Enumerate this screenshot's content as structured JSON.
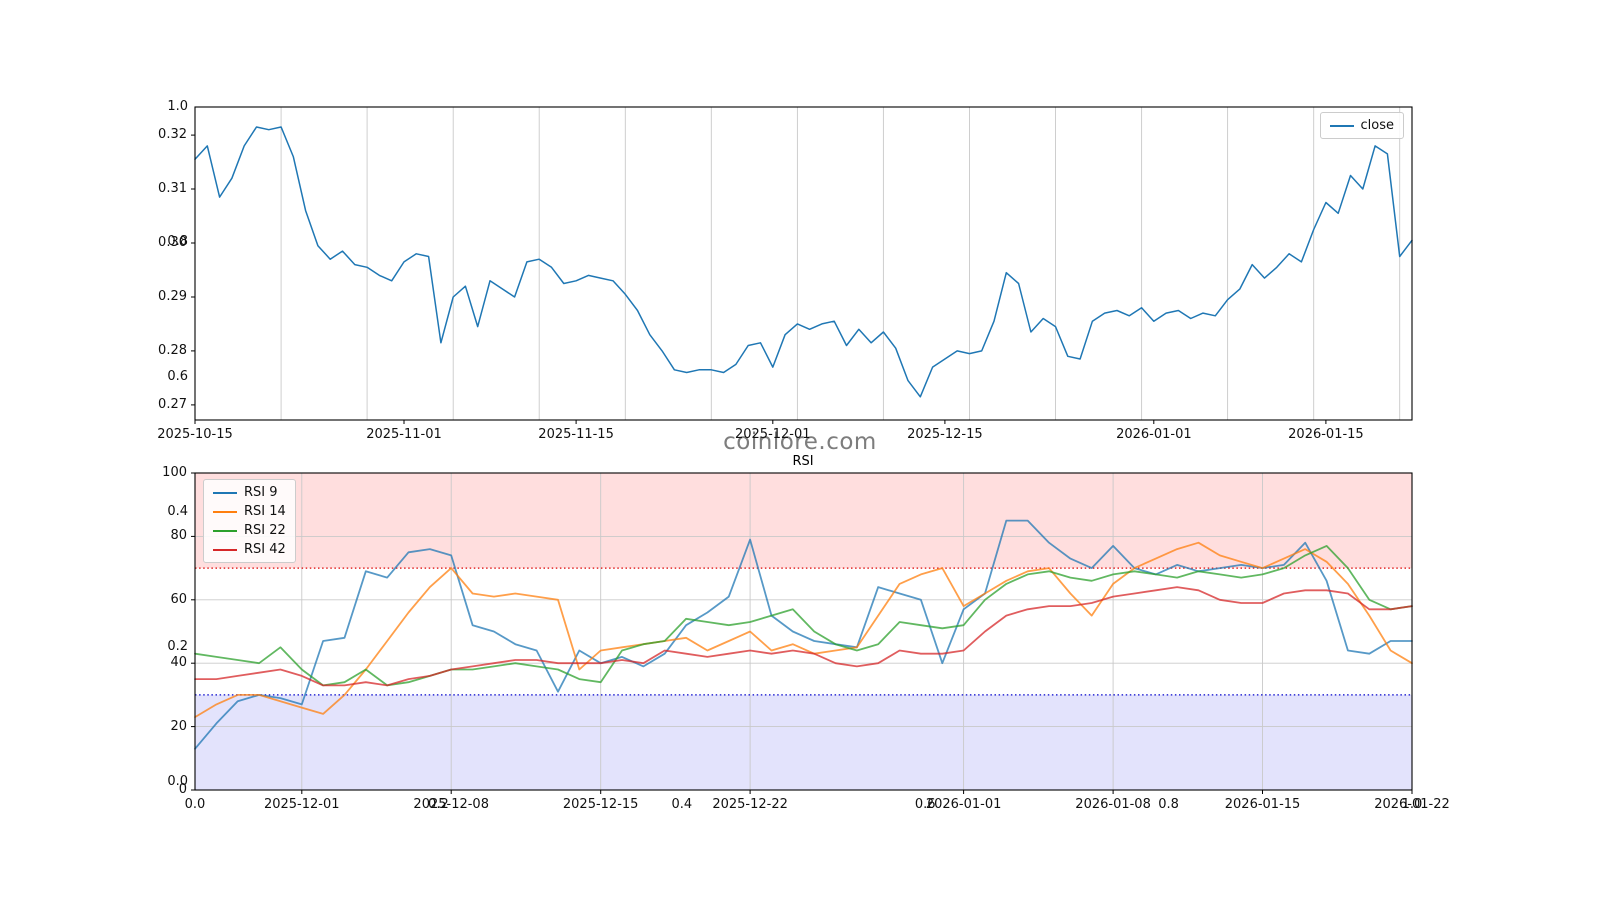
{
  "watermark": {
    "text": "coinlore.com"
  },
  "phantom_axis": {
    "y_ticks": [
      {
        "value": 1.0,
        "label": "1.0"
      },
      {
        "value": 0.8,
        "label": "0.8"
      },
      {
        "value": 0.6,
        "label": "0.6"
      },
      {
        "value": 0.4,
        "label": "0.4"
      },
      {
        "value": 0.2,
        "label": "0.2"
      },
      {
        "value": 0.0,
        "label": "0.0"
      }
    ],
    "x_ticks": [
      {
        "value": 0.0,
        "label": "0.0"
      },
      {
        "value": 0.2,
        "label": "0.2"
      },
      {
        "value": 0.4,
        "label": "0.4"
      },
      {
        "value": 0.6,
        "label": "0.6"
      },
      {
        "value": 0.8,
        "label": "0.8"
      },
      {
        "value": 1.0,
        "label": "1.0"
      }
    ]
  },
  "chart_data": [
    {
      "id": "price",
      "type": "line",
      "title": "",
      "xlabel": "",
      "ylabel": "",
      "xlim": [
        "2025-10-15",
        "2026-01-22"
      ],
      "ylim": [
        0.2672,
        0.3252
      ],
      "grid": "vertical-weekly",
      "x_ticks": [
        "2025-10-15",
        "2025-11-01",
        "2025-11-15",
        "2025-12-01",
        "2025-12-15",
        "2026-01-01",
        "2026-01-15"
      ],
      "y_ticks": [
        {
          "v": 0.27,
          "label": "0.27"
        },
        {
          "v": 0.28,
          "label": "0.28"
        },
        {
          "v": 0.29,
          "label": "0.29"
        },
        {
          "v": 0.3,
          "label": "0.30"
        },
        {
          "v": 0.31,
          "label": "0.31"
        },
        {
          "v": 0.32,
          "label": "0.32"
        }
      ],
      "grid_x_dates": [
        "2025-10-15",
        "2025-10-22",
        "2025-10-29",
        "2025-11-05",
        "2025-11-12",
        "2025-11-19",
        "2025-11-26",
        "2025-12-03",
        "2025-12-10",
        "2025-12-17",
        "2025-12-24",
        "2025-12-31",
        "2026-01-07",
        "2026-01-14",
        "2026-01-21"
      ],
      "grid_y_values": [],
      "legend": {
        "position": "top-right",
        "entries": [
          {
            "label": "close",
            "color": "#1f77b4"
          }
        ]
      },
      "x": [
        "2025-10-15",
        "2025-10-16",
        "2025-10-17",
        "2025-10-18",
        "2025-10-19",
        "2025-10-20",
        "2025-10-21",
        "2025-10-22",
        "2025-10-23",
        "2025-10-24",
        "2025-10-25",
        "2025-10-26",
        "2025-10-27",
        "2025-10-28",
        "2025-10-29",
        "2025-10-30",
        "2025-10-31",
        "2025-11-01",
        "2025-11-02",
        "2025-11-03",
        "2025-11-04",
        "2025-11-05",
        "2025-11-06",
        "2025-11-07",
        "2025-11-08",
        "2025-11-09",
        "2025-11-10",
        "2025-11-11",
        "2025-11-12",
        "2025-11-13",
        "2025-11-14",
        "2025-11-15",
        "2025-11-16",
        "2025-11-17",
        "2025-11-18",
        "2025-11-19",
        "2025-11-20",
        "2025-11-21",
        "2025-11-22",
        "2025-11-23",
        "2025-11-24",
        "2025-11-25",
        "2025-11-26",
        "2025-11-27",
        "2025-11-28",
        "2025-11-29",
        "2025-11-30",
        "2025-12-01",
        "2025-12-02",
        "2025-12-03",
        "2025-12-04",
        "2025-12-05",
        "2025-12-06",
        "2025-12-07",
        "2025-12-08",
        "2025-12-09",
        "2025-12-10",
        "2025-12-11",
        "2025-12-12",
        "2025-12-13",
        "2025-12-14",
        "2025-12-15",
        "2025-12-16",
        "2025-12-17",
        "2025-12-18",
        "2025-12-19",
        "2025-12-20",
        "2025-12-21",
        "2025-12-22",
        "2025-12-23",
        "2025-12-24",
        "2025-12-25",
        "2025-12-26",
        "2025-12-27",
        "2025-12-28",
        "2025-12-29",
        "2025-12-30",
        "2025-12-31",
        "2026-01-01",
        "2026-01-02",
        "2026-01-03",
        "2026-01-04",
        "2026-01-05",
        "2026-01-06",
        "2026-01-07",
        "2026-01-08",
        "2026-01-09",
        "2026-01-10",
        "2026-01-11",
        "2026-01-12",
        "2026-01-13",
        "2026-01-14",
        "2026-01-15",
        "2026-01-16",
        "2026-01-17",
        "2026-01-18",
        "2026-01-19",
        "2026-01-20",
        "2026-01-21",
        "2026-01-22"
      ],
      "series": [
        {
          "name": "close",
          "color": "#1f77b4",
          "opacity": 1,
          "width": 1.5,
          "values": [
            0.3155,
            0.318,
            0.3085,
            0.312,
            0.318,
            0.3215,
            0.321,
            0.3215,
            0.316,
            0.306,
            0.2995,
            0.297,
            0.2985,
            0.296,
            0.2955,
            0.294,
            0.293,
            0.2965,
            0.298,
            0.2975,
            0.2815,
            0.29,
            0.292,
            0.2845,
            0.293,
            0.2915,
            0.29,
            0.2965,
            0.297,
            0.2955,
            0.2925,
            0.293,
            0.294,
            0.2935,
            0.293,
            0.2905,
            0.2875,
            0.283,
            0.28,
            0.2765,
            0.276,
            0.2765,
            0.2765,
            0.276,
            0.2775,
            0.281,
            0.2815,
            0.277,
            0.283,
            0.285,
            0.284,
            0.285,
            0.2855,
            0.281,
            0.284,
            0.2815,
            0.2835,
            0.2805,
            0.2745,
            0.2715,
            0.277,
            0.2785,
            0.28,
            0.2795,
            0.28,
            0.2855,
            0.2945,
            0.2925,
            0.2835,
            0.286,
            0.2845,
            0.279,
            0.2785,
            0.2855,
            0.287,
            0.2875,
            0.2865,
            0.288,
            0.2855,
            0.287,
            0.2875,
            0.286,
            0.287,
            0.2865,
            0.2895,
            0.2915,
            0.296,
            0.2935,
            0.2955,
            0.298,
            0.2965,
            0.3025,
            0.3075,
            0.3055,
            0.3125,
            0.31,
            0.318,
            0.3165,
            0.2975,
            0.3005
          ]
        }
      ]
    },
    {
      "id": "rsi",
      "type": "line",
      "title": "RSI",
      "xlabel": "",
      "ylabel": "",
      "xlim": [
        "2025-11-26",
        "2026-01-22"
      ],
      "ylim": [
        0,
        100
      ],
      "overbought_level": 70,
      "oversold_level": 30,
      "x_ticks": [
        "2025-12-01",
        "2025-12-08",
        "2025-12-15",
        "2025-12-22",
        "2026-01-01",
        "2026-01-08",
        "2026-01-15",
        "2026-01-22"
      ],
      "y_ticks": [
        {
          "v": 100,
          "label": "100"
        },
        {
          "v": 80,
          "label": "80"
        },
        {
          "v": 60,
          "label": "60"
        },
        {
          "v": 40,
          "label": "40"
        },
        {
          "v": 20,
          "label": "20"
        },
        {
          "v": 0,
          "label": "0"
        }
      ],
      "grid_x_dates": [
        "2025-12-01",
        "2025-12-08",
        "2025-12-15",
        "2025-12-22",
        "2026-01-01",
        "2026-01-08",
        "2026-01-15",
        "2026-01-22"
      ],
      "grid_y_values": [
        20,
        40,
        60,
        80
      ],
      "bands": [
        {
          "from": 70,
          "to": 100,
          "color": "rgba(255,0,0,0.13)"
        },
        {
          "from": 0,
          "to": 30,
          "color": "rgba(40,40,235,0.13)"
        }
      ],
      "hlines": [
        {
          "v": 70,
          "color": "#dd0000"
        },
        {
          "v": 30,
          "color": "#0000cc"
        }
      ],
      "legend": {
        "position": "top-left",
        "entries": [
          {
            "label": "RSI 9",
            "color": "#1f77b4"
          },
          {
            "label": "RSI 14",
            "color": "#ff7f0e"
          },
          {
            "label": "RSI 22",
            "color": "#2ca02c"
          },
          {
            "label": "RSI 42",
            "color": "#d62728"
          }
        ]
      },
      "x": [
        "2025-11-26",
        "2025-11-27",
        "2025-11-28",
        "2025-11-29",
        "2025-11-30",
        "2025-12-01",
        "2025-12-02",
        "2025-12-03",
        "2025-12-04",
        "2025-12-05",
        "2025-12-06",
        "2025-12-07",
        "2025-12-08",
        "2025-12-09",
        "2025-12-10",
        "2025-12-11",
        "2025-12-12",
        "2025-12-13",
        "2025-12-14",
        "2025-12-15",
        "2025-12-16",
        "2025-12-17",
        "2025-12-18",
        "2025-12-19",
        "2025-12-20",
        "2025-12-21",
        "2025-12-22",
        "2025-12-23",
        "2025-12-24",
        "2025-12-25",
        "2025-12-26",
        "2025-12-27",
        "2025-12-28",
        "2025-12-29",
        "2025-12-30",
        "2025-12-31",
        "2026-01-01",
        "2026-01-02",
        "2026-01-03",
        "2026-01-04",
        "2026-01-05",
        "2026-01-06",
        "2026-01-07",
        "2026-01-08",
        "2026-01-09",
        "2026-01-10",
        "2026-01-11",
        "2026-01-12",
        "2026-01-13",
        "2026-01-14",
        "2026-01-15",
        "2026-01-16",
        "2026-01-17",
        "2026-01-18",
        "2026-01-19",
        "2026-01-20",
        "2026-01-21",
        "2026-01-22"
      ],
      "series": [
        {
          "name": "RSI 9",
          "color": "#1f77b4",
          "opacity": 0.75,
          "width": 1.8,
          "values": [
            13,
            21,
            28,
            30,
            29,
            27,
            47,
            48,
            69,
            67,
            75,
            76,
            74,
            52,
            50,
            46,
            44,
            31,
            44,
            40,
            42,
            39,
            43,
            52,
            56,
            61,
            79,
            55,
            50,
            47,
            46,
            45,
            64,
            62,
            60,
            40,
            57,
            62,
            85,
            85,
            78,
            73,
            70,
            77,
            70,
            68,
            71,
            69,
            70,
            71,
            70,
            71,
            78,
            66,
            44,
            43,
            47,
            47
          ]
        },
        {
          "name": "RSI 14",
          "color": "#ff7f0e",
          "opacity": 0.75,
          "width": 1.8,
          "values": [
            23,
            27,
            30,
            30,
            28,
            26,
            24,
            30,
            38,
            47,
            56,
            64,
            70,
            62,
            61,
            62,
            61,
            60,
            38,
            44,
            45,
            46,
            47,
            48,
            44,
            47,
            50,
            44,
            46,
            43,
            44,
            45,
            55,
            65,
            68,
            70,
            58,
            62,
            66,
            69,
            70,
            62,
            55,
            65,
            70,
            73,
            76,
            78,
            74,
            72,
            70,
            73,
            76,
            72,
            65,
            55,
            44,
            40
          ]
        },
        {
          "name": "RSI 22",
          "color": "#2ca02c",
          "opacity": 0.75,
          "width": 1.8,
          "values": [
            43,
            42,
            41,
            40,
            45,
            38,
            33,
            34,
            38,
            33,
            34,
            36,
            38,
            38,
            39,
            40,
            39,
            38,
            35,
            34,
            44,
            46,
            47,
            54,
            53,
            52,
            53,
            55,
            57,
            50,
            46,
            44,
            46,
            53,
            52,
            51,
            52,
            60,
            65,
            68,
            69,
            67,
            66,
            68,
            69,
            68,
            67,
            69,
            68,
            67,
            68,
            70,
            74,
            77,
            70,
            60,
            57,
            58
          ]
        },
        {
          "name": "RSI 42",
          "color": "#d62728",
          "opacity": 0.75,
          "width": 1.8,
          "values": [
            35,
            35,
            36,
            37,
            38,
            36,
            33,
            33,
            34,
            33,
            35,
            36,
            38,
            39,
            40,
            41,
            41,
            40,
            40,
            40,
            41,
            40,
            44,
            43,
            42,
            43,
            44,
            43,
            44,
            43,
            40,
            39,
            40,
            44,
            43,
            43,
            44,
            50,
            55,
            57,
            58,
            58,
            59,
            61,
            62,
            63,
            64,
            63,
            60,
            59,
            59,
            62,
            63,
            63,
            62,
            57,
            57,
            58
          ]
        }
      ]
    }
  ]
}
